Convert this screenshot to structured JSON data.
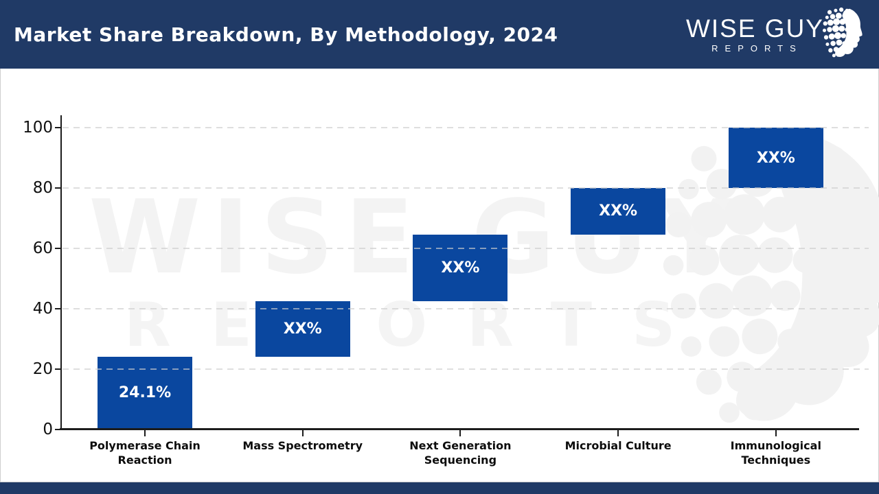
{
  "header": {
    "title": "Market Share Breakdown, By Methodology, 2024",
    "logo": {
      "primary": "WISE GUY",
      "secondary": "REPORTS"
    }
  },
  "watermark": {
    "primary": "WISE GUY",
    "secondary": "REPORTS"
  },
  "colors": {
    "header_bg": "#203a66",
    "footer_bg": "#203a66",
    "bar": "#0a479f",
    "grid": "#dedede",
    "axis": "#1c1c1c",
    "value_label": "#ffffff"
  },
  "chart_data": {
    "type": "bar",
    "subtype": "waterfall",
    "title": "Market Share Breakdown, By Methodology, 2024",
    "categories": [
      "Polymerase Chain Reaction",
      "Mass Spectrometry",
      "Next Generation Sequencing",
      "Microbial Culture",
      "Immunological Techniques"
    ],
    "bars": [
      {
        "category": "Polymerase Chain Reaction",
        "start": 0,
        "end": 24.1,
        "label": "24.1%"
      },
      {
        "category": "Mass Spectrometry",
        "start": 24.1,
        "end": 42.6,
        "label": "XX%"
      },
      {
        "category": "Next Generation Sequencing",
        "start": 42.6,
        "end": 64.6,
        "label": "XX%"
      },
      {
        "category": "Microbial Culture",
        "start": 64.6,
        "end": 80,
        "label": "XX%"
      },
      {
        "category": "Immunological Techniques",
        "start": 80,
        "end": 100,
        "label": "XX%"
      }
    ],
    "xlabel": "",
    "ylabel": "",
    "ylim": [
      0,
      100
    ],
    "yticks": [
      0,
      20,
      40,
      60,
      80,
      100
    ],
    "grid": "horizontal-dashed",
    "legend": null,
    "bar_color": "#0a479f",
    "value_label_color": "#ffffff"
  }
}
